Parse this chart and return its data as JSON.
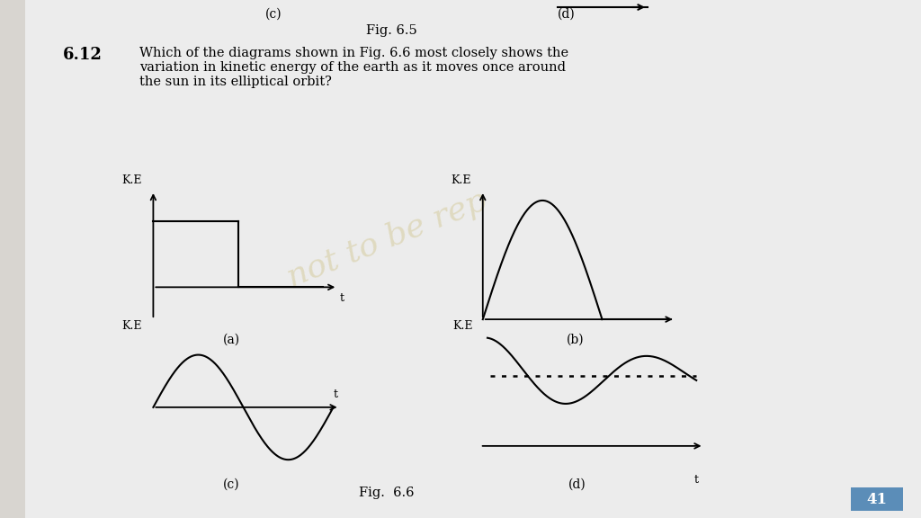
{
  "bg_color": "#d8d5d0",
  "page_color": "#ececec",
  "text_color": "#1a1a1a",
  "question_num": "6.12",
  "question_line1": "Which of the diagrams shown in Fig. 6.6 most closely shows the",
  "question_line2": "variation in kinetic energy of the earth as it moves once around",
  "question_line3": "the sun in its elliptical orbit?",
  "fig65_label": "Fig. 6.5",
  "fig66_label": "Fig.  6.6",
  "top_c_label": "(c)",
  "top_d_label": "(d)",
  "sub_a": "(a)",
  "sub_b": "(b)",
  "sub_c": "(c)",
  "sub_d": "(d)",
  "ke_label": "K.E",
  "t_label": "t",
  "page_num": "41",
  "page_box_color": "#5b8db8",
  "watermark_text": "not to be rep",
  "watermark_color": "#c8b870",
  "watermark_alpha": 0.35
}
